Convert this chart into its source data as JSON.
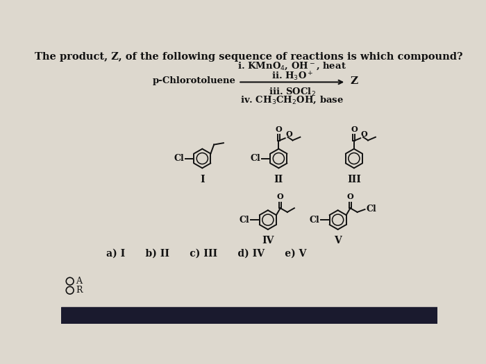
{
  "bg_color": "#ccc8c0",
  "bg_color2": "#ddd8ce",
  "text_color": "#111111",
  "struct_color": "#111111",
  "title": "The product, Z, of the following sequence of reactions is which compound?",
  "rxn1": "i. KMnO$_4$, OH$^{\\bar{}}$, heat",
  "rxn2": "ii. H$_3$O$^+$",
  "rxn3": "iii. SOCl$_2$",
  "rxn4": "iv. CH$_3$CH$_2$OH, base",
  "reactant": "p-Chlorotoluene",
  "product": "Z",
  "label_I": "I",
  "label_II": "II",
  "label_III": "III",
  "label_IV": "IV",
  "label_V": "V",
  "answer": "a) I      b) II      c) III      d) IV      e) V"
}
